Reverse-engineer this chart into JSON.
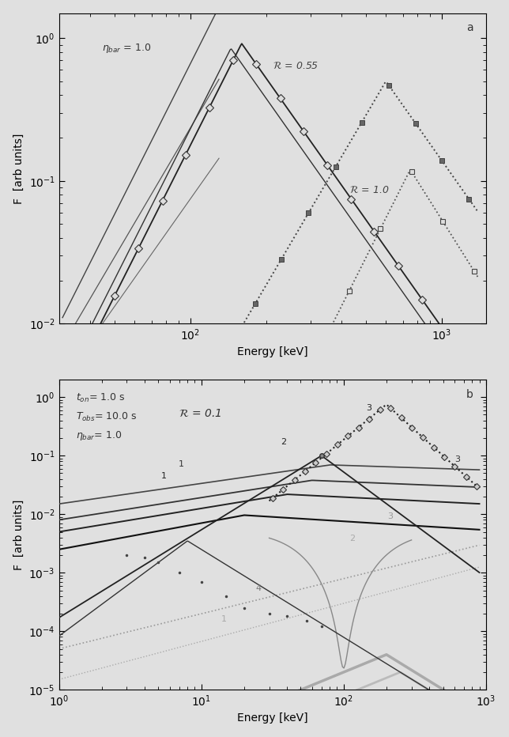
{
  "panel_a": {
    "xlabel": "Energy [keV]",
    "ylabel": "F  [arb units]",
    "label_top": "a",
    "ann_eta": "$\\eta_{bar}$ = 1.0",
    "ann_R055": "$\\mathcal{R}$ = 0.55",
    "ann_R10": "$\\mathcal{R}$ = 1.0",
    "xlim": [
      30,
      1500
    ],
    "ylim": [
      0.01,
      1.5
    ]
  },
  "panel_b": {
    "xlabel": "Energy [keV]",
    "ylabel": "F  [arb units]",
    "label_top": "b",
    "ann1": "$t_{on}$= 1.0 s",
    "ann2": "$T_{obs}$= 10.0 s",
    "ann3": "$\\eta_{bar}$= 1.0",
    "ann4": "$\\mathcal{R}$ = 0.1",
    "xlim": [
      1,
      1000
    ],
    "ylim": [
      1e-05,
      2.0
    ]
  },
  "bg_color": "#e0e0e0"
}
